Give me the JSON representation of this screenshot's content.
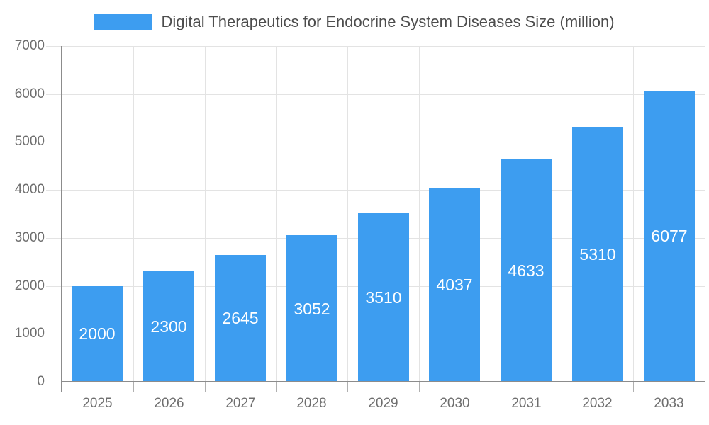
{
  "chart_data": {
    "type": "bar",
    "title": "Digital Therapeutics for Endocrine System Diseases Size (million)",
    "categories": [
      "2025",
      "2026",
      "2027",
      "2028",
      "2029",
      "2030",
      "2031",
      "2032",
      "2033"
    ],
    "values": [
      2000,
      2300,
      2645,
      3052,
      3510,
      4037,
      4633,
      5310,
      6077
    ],
    "xlabel": "",
    "ylabel": "",
    "ylim": [
      0,
      7000
    ],
    "ytick_step": 1000,
    "yticks": [
      0,
      1000,
      2000,
      3000,
      4000,
      5000,
      6000,
      7000
    ],
    "grid": true,
    "legend_position": "top",
    "legend_entries": [
      "Digital Therapeutics for Endocrine System Diseases Size (million)"
    ],
    "bar_labels_inside": true
  },
  "colors": {
    "bar": "#3d9df0",
    "bar_label": "#ffffff",
    "axis_text": "#6e6e6e",
    "legend_text": "#4d4d4d",
    "gridline": "#e3e3e3",
    "axis_line": "#8c8c8c",
    "background": "#ffffff"
  }
}
